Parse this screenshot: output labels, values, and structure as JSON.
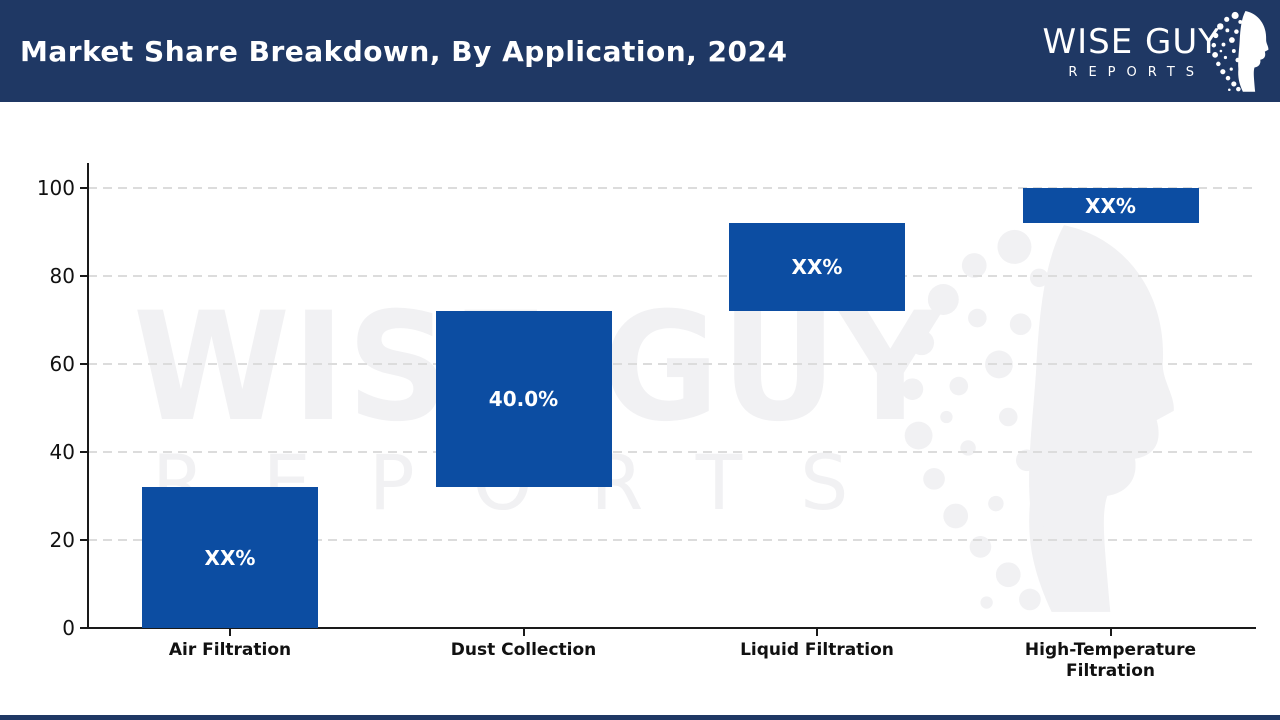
{
  "header": {
    "title": "Market Share Breakdown, By Application, 2024",
    "logo": {
      "line1": "WISE GUY",
      "line2": "REPORTS"
    }
  },
  "watermark": {
    "line1": "WISE GUY",
    "line2": "REPORTS"
  },
  "footer": {
    "note": ""
  },
  "colors": {
    "header_bg": "#1f3864",
    "bar": "#0c4da2",
    "bar_label": "#ffffff",
    "grid": "#dcdcdc",
    "axis": "#1a1a1a",
    "watermark": "#f1f1f3"
  },
  "chart_data": {
    "type": "bar",
    "variant": "floating-segment-waterfall",
    "title": "Market Share Breakdown, By Application, 2024",
    "categories": [
      "Air Filtration",
      "Dust Collection",
      "Liquid Filtration",
      "High-Temperature Filtration"
    ],
    "segments": [
      {
        "category": "Air Filtration",
        "start": 0,
        "end": 32,
        "label": "XX%"
      },
      {
        "category": "Dust Collection",
        "start": 32,
        "end": 72,
        "label": "40.0%"
      },
      {
        "category": "Liquid Filtration",
        "start": 72,
        "end": 92,
        "label": "XX%"
      },
      {
        "category": "High-Temperature Filtration",
        "start": 92,
        "end": 100,
        "label": "XX%"
      }
    ],
    "xlabel": "",
    "ylabel": "",
    "ylim": [
      0,
      106
    ],
    "yticks": [
      0,
      20,
      40,
      60,
      80,
      100
    ],
    "grid": "horizontal-dashed",
    "legend": "none"
  }
}
